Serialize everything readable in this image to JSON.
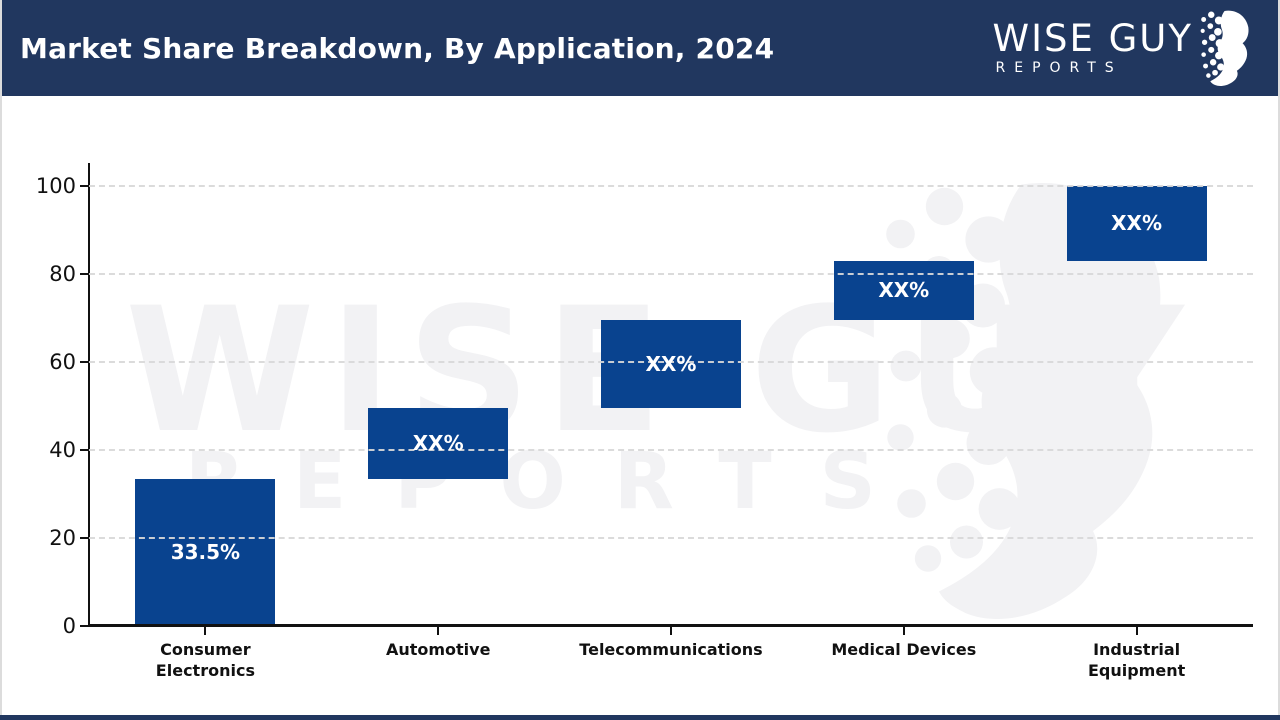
{
  "header": {
    "title": "Market Share Breakdown, By Application, 2024",
    "logo": {
      "name_line": "WISE GUY",
      "sub_line": "REPORTS"
    }
  },
  "watermark": {
    "line1": "WISE GUY",
    "line2": "REPORTS"
  },
  "colors": {
    "header_bg": "#21375f",
    "bar": "#09438f",
    "bar_label": "#ffffff",
    "grid": "#d9d9d9",
    "axis": "#111111",
    "watermark": "#f2f2f4",
    "page_border": "#dcdcdc"
  },
  "chart_data": {
    "type": "bar",
    "subtype": "waterfall",
    "title": "Market Share Breakdown, By Application, 2024",
    "categories": [
      "Consumer Electronics",
      "Automotive",
      "Telecommunications",
      "Medical Devices",
      "Industrial Equipment"
    ],
    "category_label_lines": [
      [
        "Consumer",
        "Electronics"
      ],
      [
        "Automotive"
      ],
      [
        "Telecommunications"
      ],
      [
        "Medical Devices"
      ],
      [
        "Industrial",
        "Equipment"
      ]
    ],
    "bars": [
      {
        "category": "Consumer Electronics",
        "start": 0,
        "end": 33.5,
        "value": 33.5,
        "label": "33.5%"
      },
      {
        "category": "Automotive",
        "start": 33.5,
        "end": 49.5,
        "value": 16,
        "label": "XX%"
      },
      {
        "category": "Telecommunications",
        "start": 49.5,
        "end": 69.5,
        "value": 20,
        "label": "XX%"
      },
      {
        "category": "Medical Devices",
        "start": 69.5,
        "end": 83,
        "value": 13.5,
        "label": "XX%"
      },
      {
        "category": "Industrial Equipment",
        "start": 83,
        "end": 100,
        "value": 17,
        "label": "XX%"
      }
    ],
    "xlabel": "",
    "ylabel": "",
    "yticks": [
      0,
      20,
      40,
      60,
      80,
      100
    ],
    "ylim": [
      0,
      105
    ],
    "grid": {
      "axis": "y",
      "style": "dashed",
      "on": true
    },
    "legend": "none"
  }
}
